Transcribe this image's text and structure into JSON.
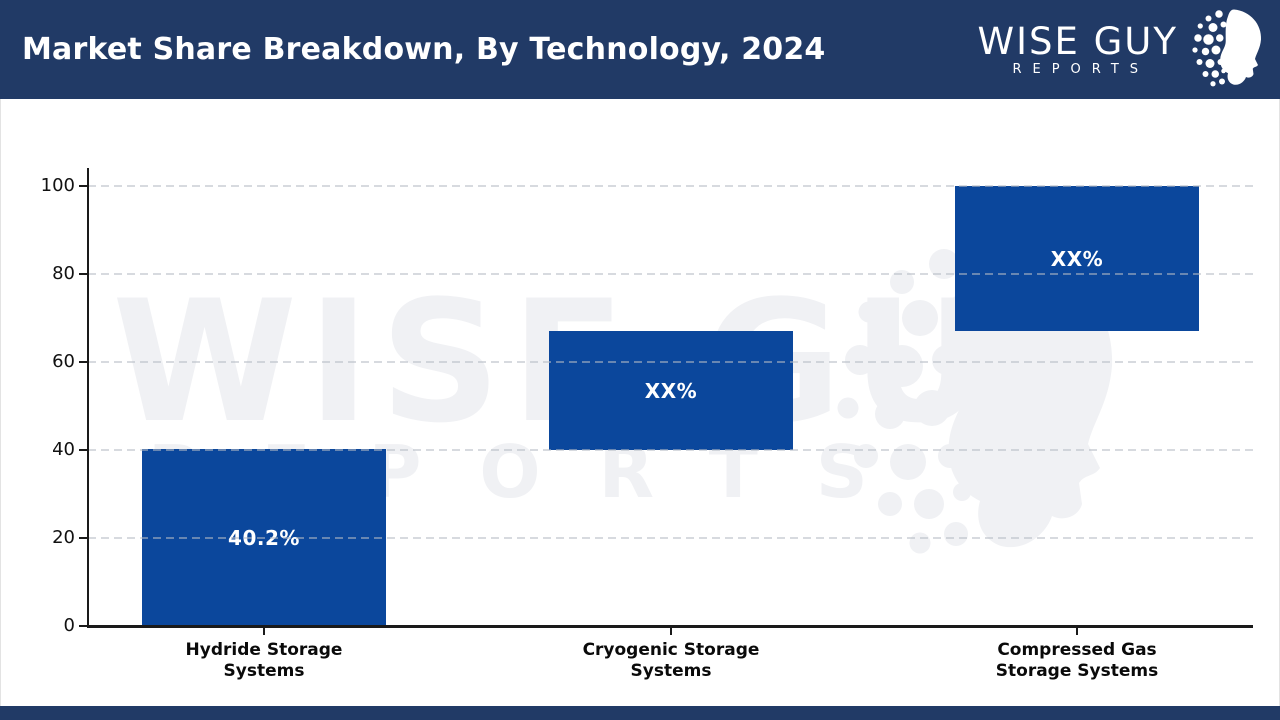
{
  "header": {
    "title": "Market Share Breakdown, By Technology, 2024",
    "logo": {
      "line1": "WISE GUY",
      "line2": "REPORTS"
    }
  },
  "watermark": {
    "line1": "WISE GUY",
    "line2": "REPORTS"
  },
  "colors": {
    "header_navy": "#213a66",
    "bar_blue": "#0b479c",
    "watermark_gray": "#f0f1f4",
    "gridline_gray": "#d9d9d9",
    "axis_black": "#1a1a1a"
  },
  "chart_data": {
    "type": "bar",
    "subtype": "floating-segment-bars (stacked market-share breakdown)",
    "title": "Market Share Breakdown, By Technology, 2024",
    "xlabel": "",
    "ylabel": "",
    "ylim": [
      0,
      105
    ],
    "yticks": [
      0,
      20,
      40,
      60,
      80,
      100
    ],
    "grid": "horizontal dashed, light gray",
    "legend": "none",
    "bar_color": "#0b479c",
    "categories": [
      [
        "Hydride Storage",
        "Systems"
      ],
      [
        "Cryogenic Storage",
        "Systems"
      ],
      [
        "Compressed Gas",
        "Storage Systems"
      ]
    ],
    "bars": [
      {
        "start": 0,
        "end": 40.2,
        "label": "40.2%"
      },
      {
        "start": 40,
        "end": 67,
        "label": "XX%"
      },
      {
        "start": 67,
        "end": 100,
        "label": "XX%"
      }
    ]
  }
}
